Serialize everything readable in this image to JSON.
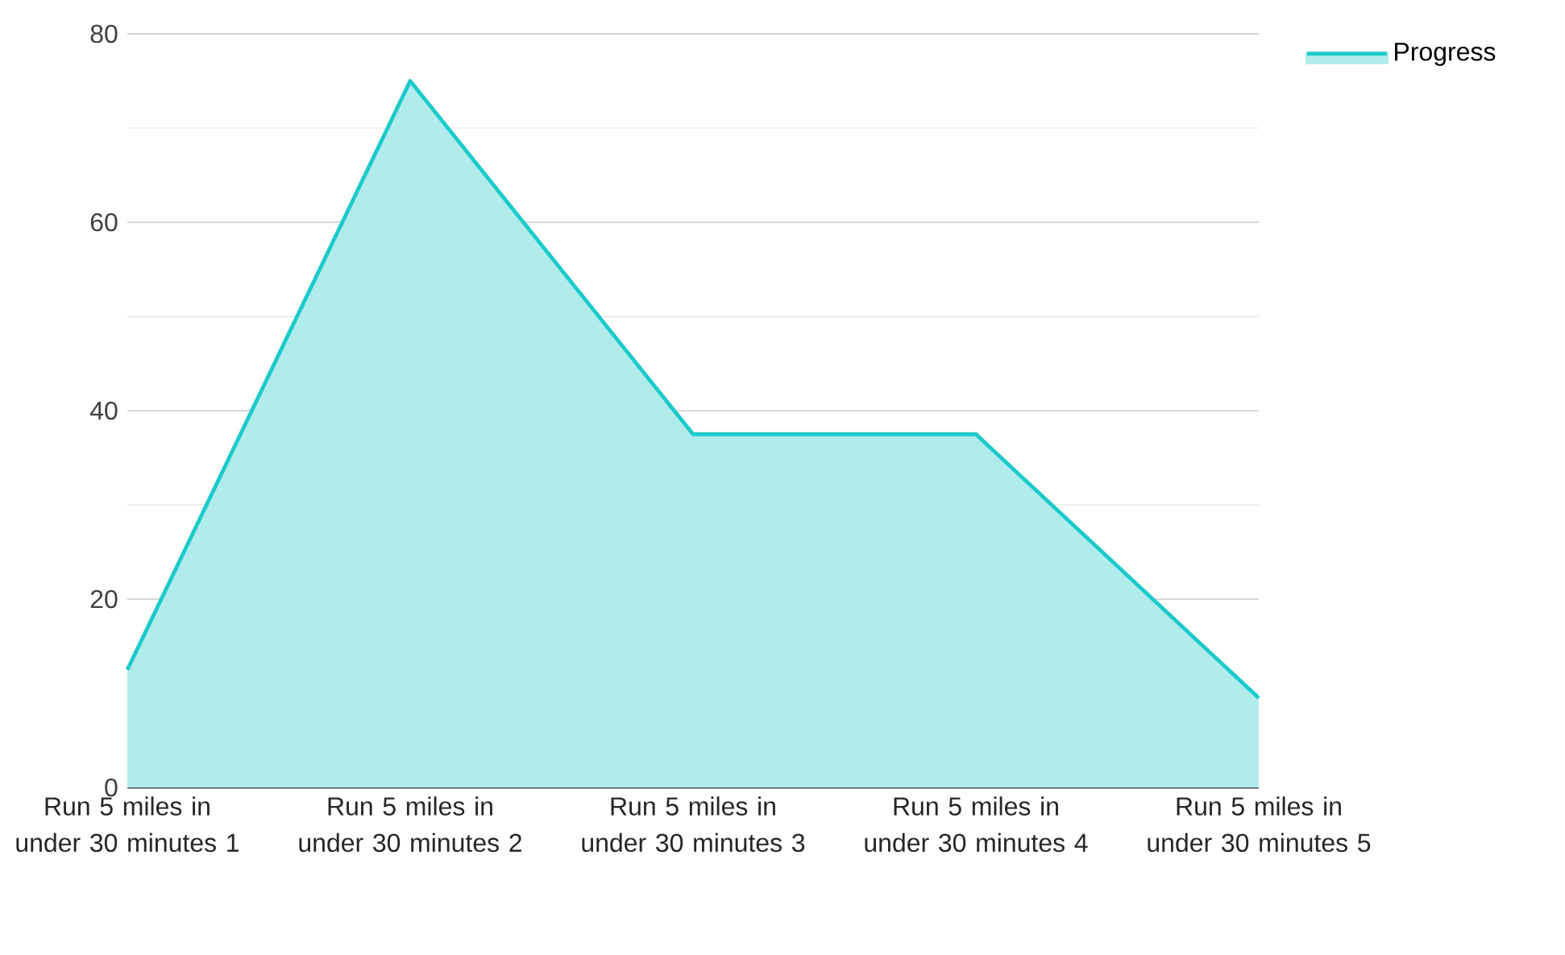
{
  "chart_data": {
    "type": "area",
    "categories": [
      "Run 5 miles in under 30 minutes 1",
      "Run 5 miles in under 30 minutes 2",
      "Run 5 miles in under 30 minutes 3",
      "Run 5 miles in under 30 minutes 4",
      "Run 5 miles in under 30 minutes 5"
    ],
    "series": [
      {
        "name": "Progress",
        "color": "#1ccaca",
        "values": [
          12.5,
          75,
          37.5,
          37.5,
          9.5
        ]
      }
    ],
    "ylim": [
      0,
      80
    ],
    "yticks": [
      0,
      {
        "value": 10,
        "label": null
      },
      20,
      {
        "value": 30,
        "label": null
      },
      40,
      {
        "value": 50,
        "label": null
      },
      60,
      {
        "value": 70,
        "label": null
      },
      80
    ],
    "grid": "y",
    "legend": "top right",
    "marker": "none",
    "line_style": "solid"
  }
}
